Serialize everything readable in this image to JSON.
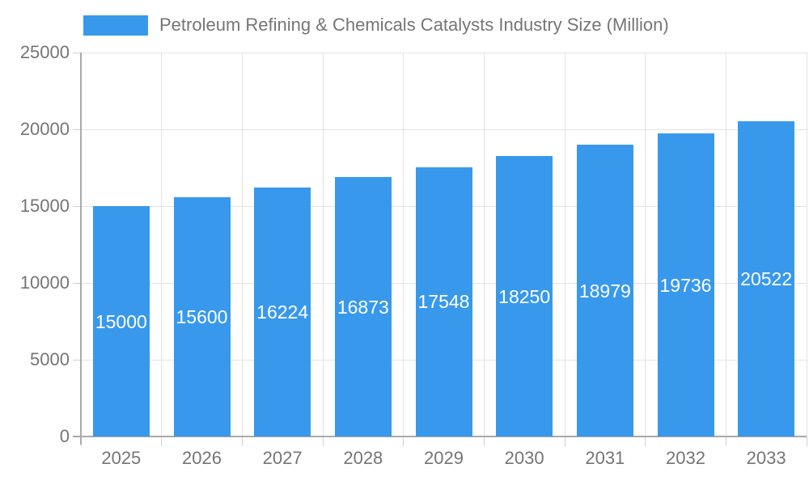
{
  "chart_data": {
    "type": "bar",
    "title": "Petroleum Refining & Chemicals Catalysts Industry Size (Million)",
    "categories": [
      "2025",
      "2026",
      "2027",
      "2028",
      "2029",
      "2030",
      "2031",
      "2032",
      "2033"
    ],
    "values": [
      15000,
      15600,
      16224,
      16873,
      17548,
      18250,
      18979,
      19736,
      20522
    ],
    "series_name": "Petroleum Refining & Chemicals Catalysts Industry Size (Million)",
    "xlabel": "",
    "ylabel": "",
    "ylim": [
      0,
      25000
    ],
    "yticks": [
      0,
      5000,
      10000,
      15000,
      20000,
      25000
    ],
    "grid": true,
    "legend_position": "top-left",
    "bar_label_style": "inside-center-white",
    "colors": {
      "bar": "#3899EC",
      "axis_line": "#aaaaaa",
      "grid_line": "#e3e3e3",
      "tick_mark": "#d0d0d0",
      "tick_text": "#757575",
      "title_text": "#757575",
      "bar_label_text": "#ffffff",
      "background": "#ffffff"
    }
  }
}
